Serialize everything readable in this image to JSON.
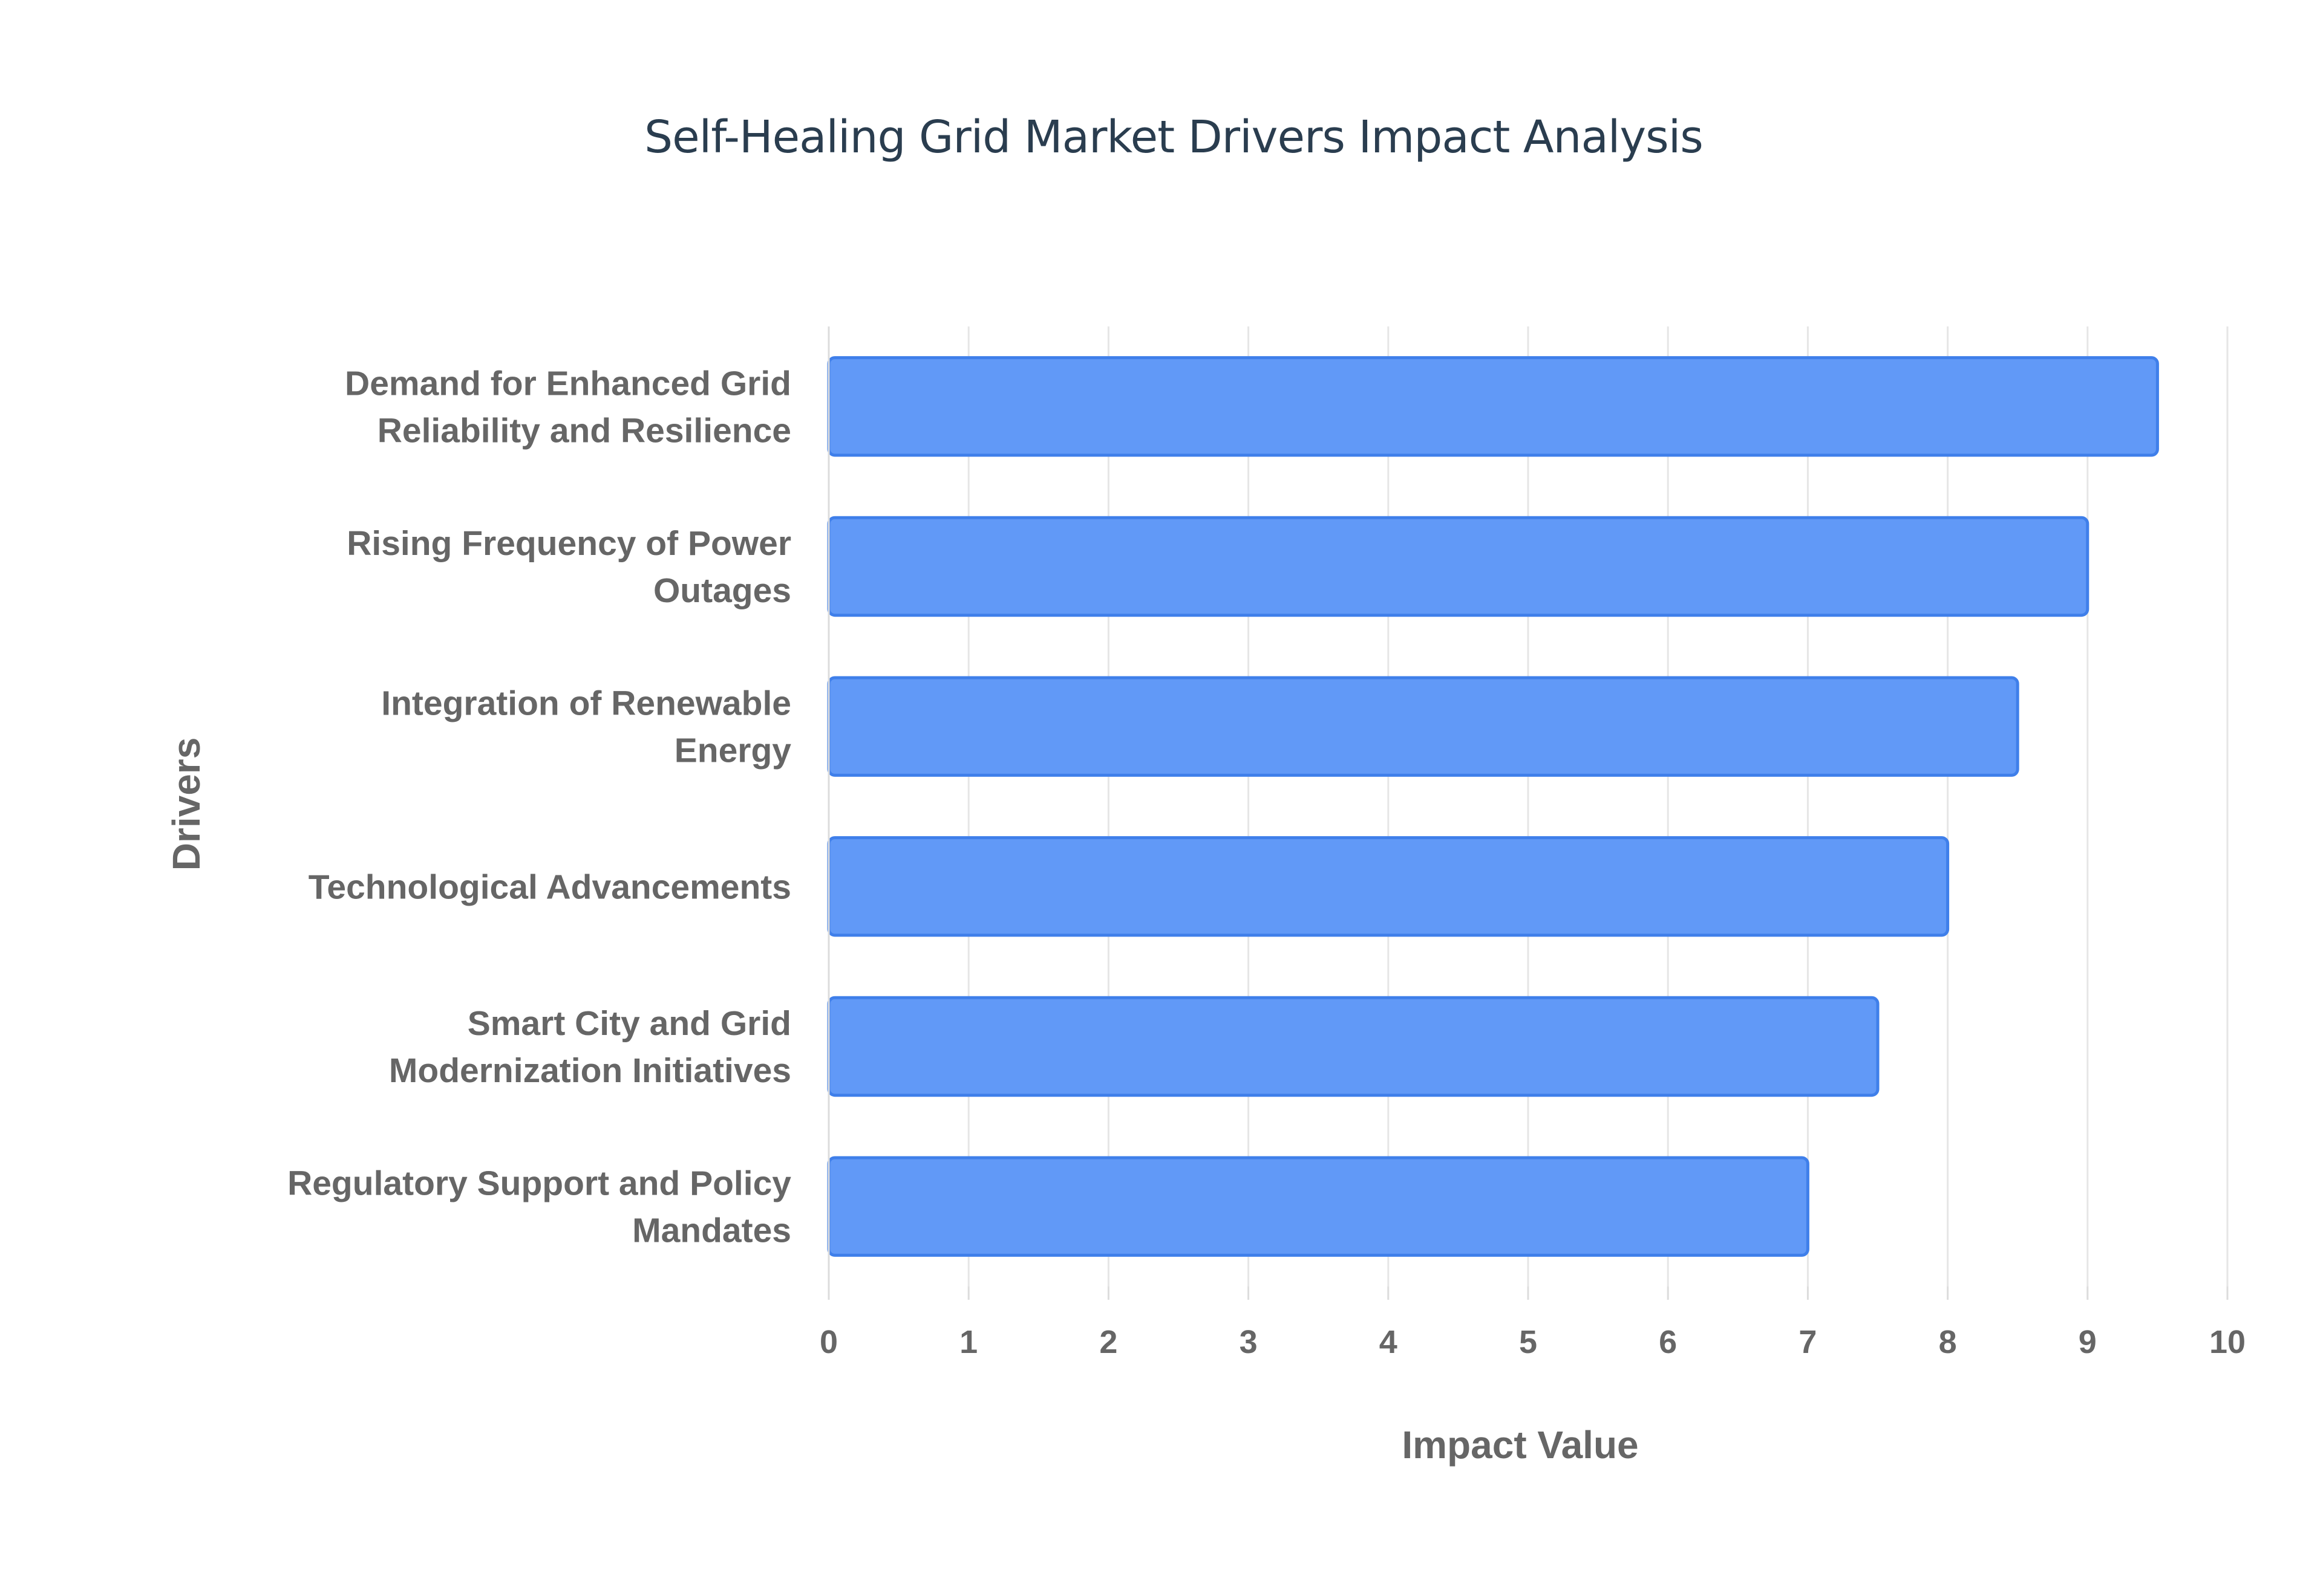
{
  "chart_data": {
    "type": "bar",
    "orientation": "horizontal",
    "title": "Self-Healing Grid Market Drivers Impact Analysis",
    "xlabel": "Impact Value",
    "ylabel": "Drivers",
    "xlim": [
      0,
      10
    ],
    "x_ticks": [
      "0",
      "1",
      "2",
      "3",
      "4",
      "5",
      "6",
      "7",
      "8",
      "9",
      "10"
    ],
    "grid": true,
    "categories": [
      [
        "Demand for Enhanced Grid",
        "Reliability and Resilience"
      ],
      [
        "Rising Frequency of Power",
        "Outages"
      ],
      [
        "Integration of Renewable",
        "Energy"
      ],
      [
        "Technological Advancements"
      ],
      [
        "Smart City and Grid",
        "Modernization Initiatives"
      ],
      [
        "Regulatory Support and Policy",
        "Mandates"
      ]
    ],
    "values": [
      9.5,
      9.0,
      8.5,
      8.0,
      7.5,
      7.0
    ],
    "colors": {
      "bar_fill": "#6199f7",
      "bar_stroke": "#3f7fea",
      "title": "#2a3d4f",
      "text": "#666666"
    }
  }
}
